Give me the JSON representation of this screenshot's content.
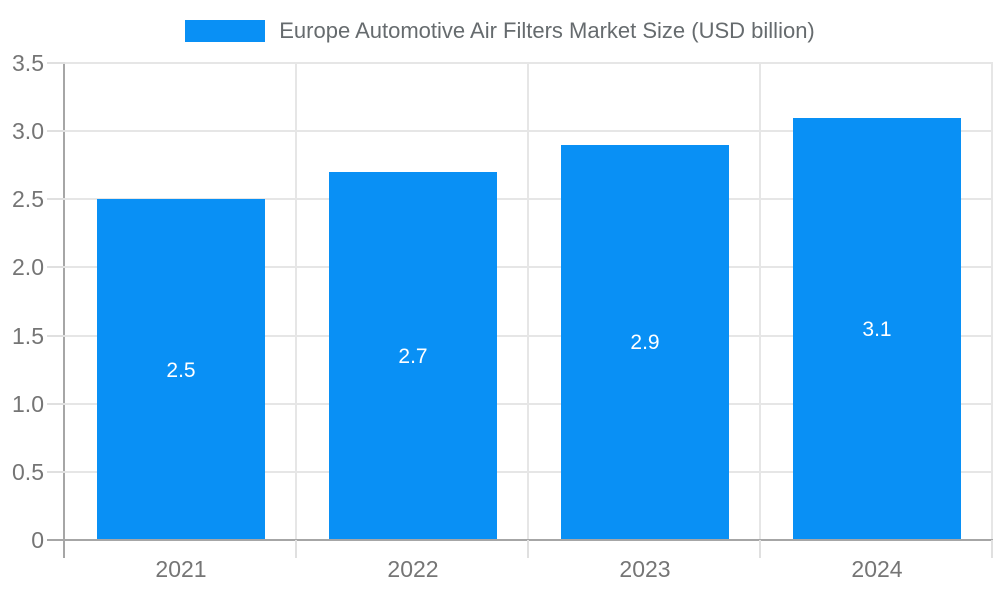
{
  "legend": {
    "title": "Europe Automotive Air Filters Market Size (USD billion)"
  },
  "chart_data": {
    "type": "bar",
    "categories": [
      "2021",
      "2022",
      "2023",
      "2024"
    ],
    "values": [
      2.5,
      2.7,
      2.9,
      3.1
    ],
    "data_labels": [
      "2.5",
      "2.7",
      "2.9",
      "3.1"
    ],
    "title": "Europe Automotive Air Filters Market Size (USD billion)",
    "xlabel": "",
    "ylabel": "",
    "ylim": [
      0,
      3.5
    ],
    "yticks": [
      0,
      0.5,
      1,
      1.5,
      2,
      2.5,
      3,
      3.5
    ],
    "ytick_labels": [
      "0",
      "0.5",
      "1.0",
      "1.5",
      "2.0",
      "2.5",
      "3.0",
      "3.5"
    ],
    "grid": true,
    "legend_position": "top-center",
    "bar_color": "#0990f5",
    "data_label_color": "#ffffff",
    "axis_label_color": "#757575",
    "legend_text_color": "#666b6e",
    "gridline_color": "#e6e6e6",
    "axis_line_color": "#a6a6a6"
  }
}
